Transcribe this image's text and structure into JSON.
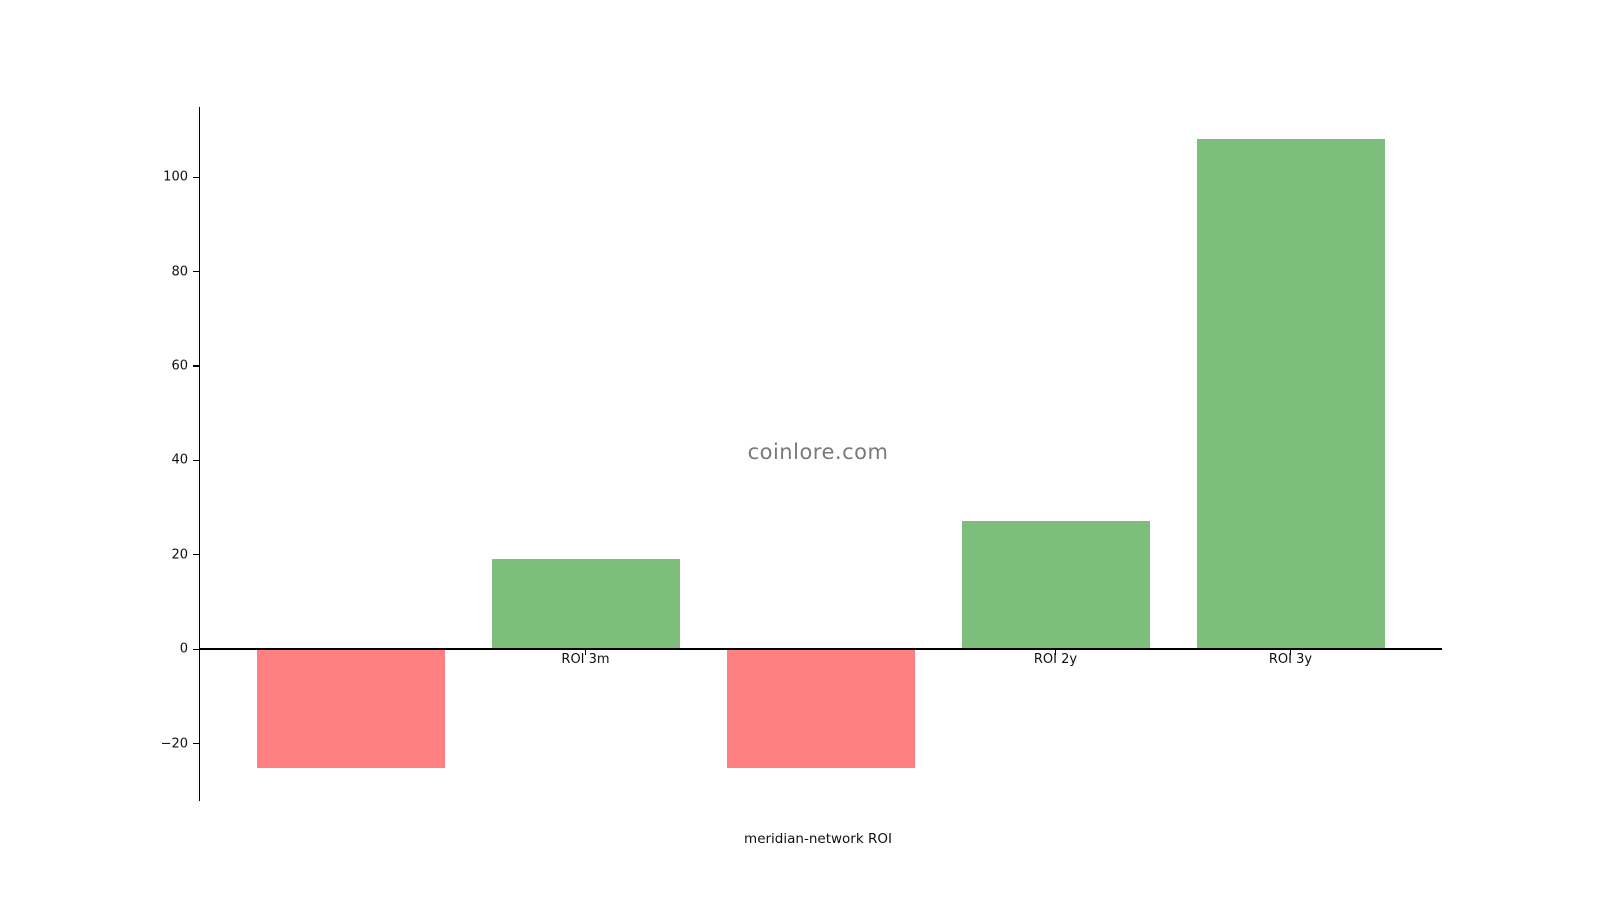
{
  "watermark": "coinlore.com",
  "xlabel": "meridian-network ROI",
  "colors": {
    "positive_bar": "#7dbe7d",
    "negative_bar": "#ff8080",
    "axis": "#000000",
    "watermark_text": "#7a7a7a",
    "background": "#ffffff"
  },
  "chart_data": {
    "type": "bar",
    "title": "",
    "xlabel": "meridian-network ROI",
    "ylabel": "",
    "categories": [
      "",
      "ROI 3m",
      "",
      "ROI 2y",
      "ROI 3y"
    ],
    "values": [
      -25,
      19,
      -25,
      27,
      108
    ],
    "bar_color_positive": "#7dbe7d",
    "bar_color_negative": "#ff8080",
    "yticks": [
      100,
      80,
      60,
      40,
      20,
      0,
      -20
    ],
    "ylim": [
      -32,
      115
    ],
    "grid": false,
    "legend": null,
    "annotations": [
      "coinlore.com"
    ]
  }
}
